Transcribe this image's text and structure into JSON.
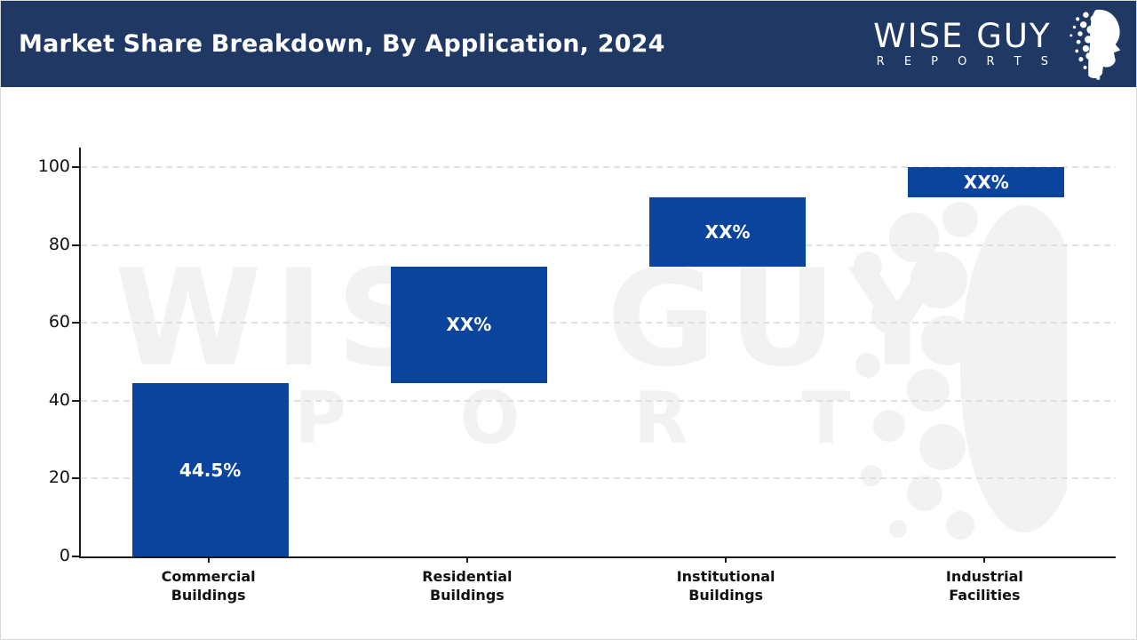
{
  "page": {
    "bg": "#ffffff",
    "border_color": "#d8d8d8"
  },
  "header": {
    "bg_color": "#1f3864",
    "title": "Market Share Breakdown, By Application, 2024",
    "logo": {
      "wordmark": "WISE GUY",
      "subtext": "R E P O R T S",
      "head_icon": "dotted-face-profile"
    }
  },
  "watermark": {
    "line1": "WISE GUY",
    "line2": "P O R T S",
    "color": "#f2f2f3"
  },
  "chart_data": {
    "type": "bar",
    "variant": "waterfall",
    "title": "Market Share Breakdown, By Application, 2024",
    "xlabel": "",
    "ylabel": "",
    "categories": [
      "Commercial Buildings",
      "Residential Buildings",
      "Institutional Buildings",
      "Industrial Facilities"
    ],
    "category_lines": [
      [
        "Commercial",
        "Buildings"
      ],
      [
        "Residential",
        "Buildings"
      ],
      [
        "Institutional",
        "Buildings"
      ],
      [
        "Industrial",
        "Facilities"
      ]
    ],
    "segments": [
      {
        "category": "Commercial Buildings",
        "start": 0,
        "end": 44.5,
        "label": "44.5%"
      },
      {
        "category": "Residential Buildings",
        "start": 44.5,
        "end": 74.5,
        "label": "XX%"
      },
      {
        "category": "Institutional Buildings",
        "start": 74.5,
        "end": 92.3,
        "label": "XX%"
      },
      {
        "category": "Industrial Facilities",
        "start": 92.3,
        "end": 100,
        "label": "XX%"
      }
    ],
    "yticks": [
      0,
      20,
      40,
      60,
      80,
      100
    ],
    "ylim": [
      0,
      105
    ],
    "grid": {
      "axis": "y",
      "style": "dashed",
      "color": "#e0e0e0"
    },
    "legend": "none",
    "bar_color": "#0a449c",
    "bar_label_color": "#ffffff",
    "axis_color": "#1a1a1a",
    "tick_label_color": "#111111"
  }
}
